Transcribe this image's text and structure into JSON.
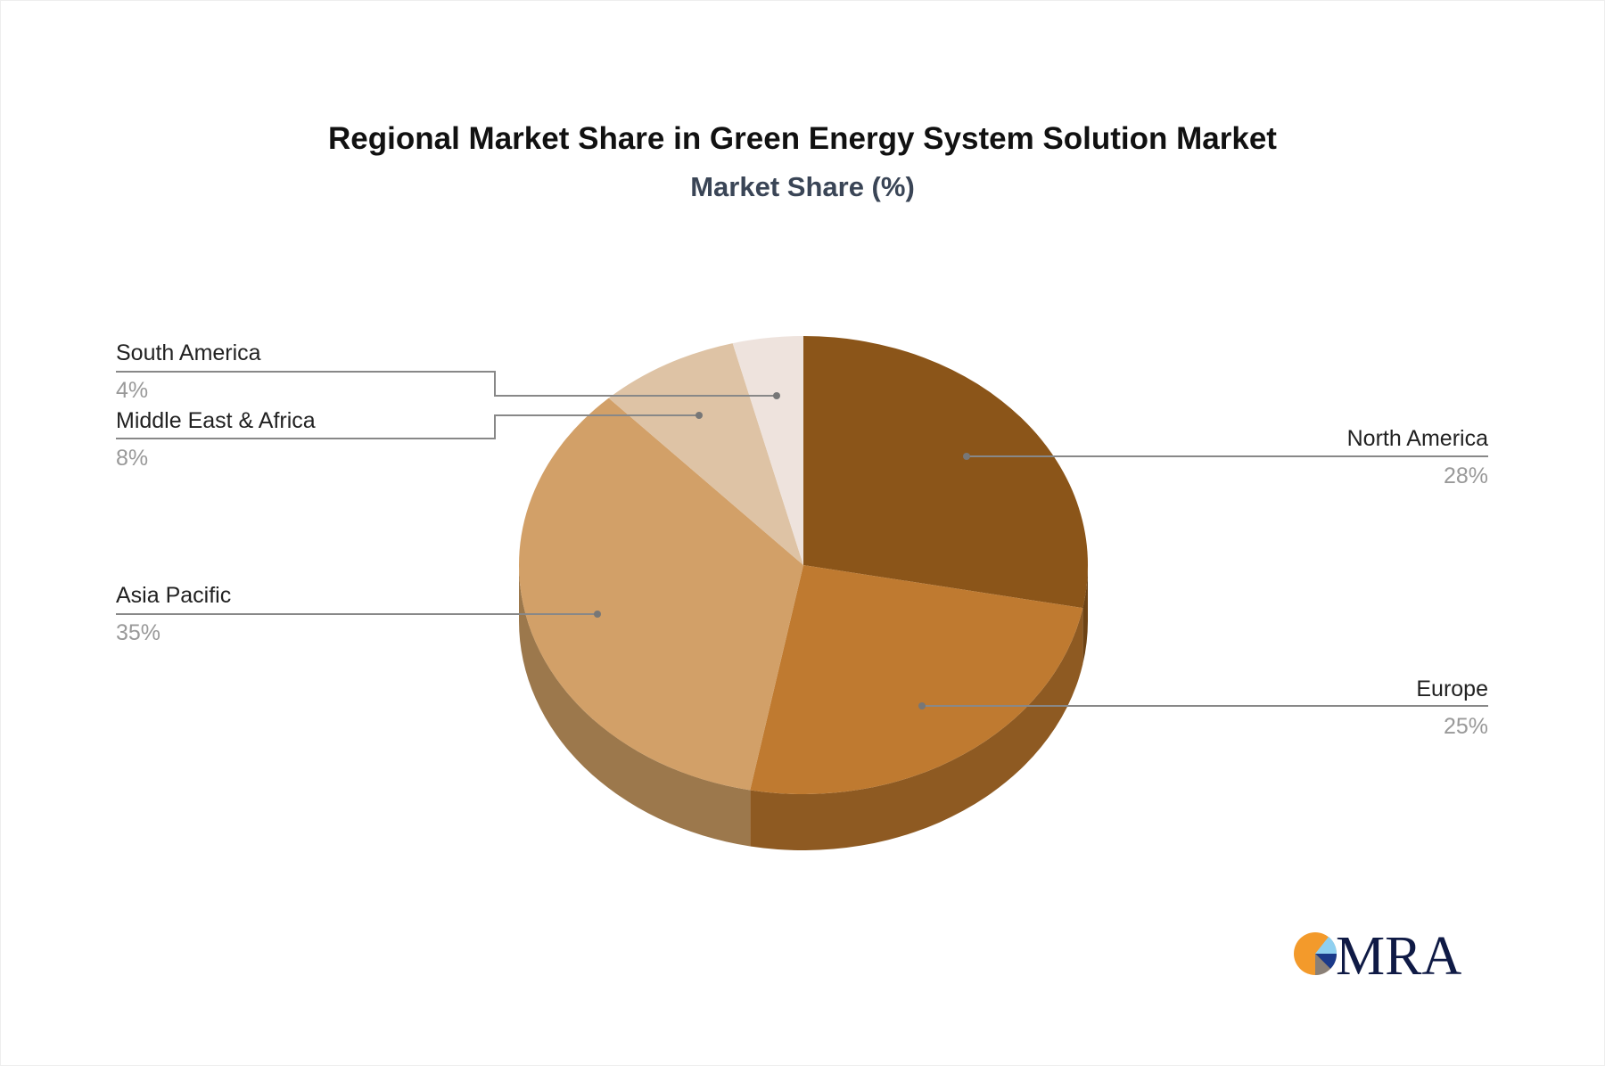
{
  "chart_data": {
    "type": "pie",
    "title": "Regional Market Share in Green Energy System Solution Market",
    "subtitle": "Market Share (%)",
    "style": "3d",
    "start_angle": "12 o'clock, clockwise",
    "slices": [
      {
        "label": "North America",
        "value": 28,
        "display": "28%",
        "color": "#8B5519",
        "side_color": "#6E4314"
      },
      {
        "label": "Europe",
        "value": 25,
        "display": "25%",
        "color": "#BF7A30",
        "side_color": "#8E5A22"
      },
      {
        "label": "Asia Pacific",
        "value": 35,
        "display": "35%",
        "color": "#D2A068",
        "side_color": "#9C784C"
      },
      {
        "label": "Middle East & Africa",
        "value": 8,
        "display": "8%",
        "color": "#DEC3A5",
        "side_color": "#A89279"
      },
      {
        "label": "South America",
        "value": 4,
        "display": "4%",
        "color": "#EEE3DD",
        "side_color": "#B5A9A2"
      }
    ]
  },
  "logo": {
    "text": "MRA",
    "colors": [
      "#F39A2B",
      "#8FD0F0",
      "#1B3A8A",
      "#8A8077",
      "#0F1A45"
    ]
  }
}
